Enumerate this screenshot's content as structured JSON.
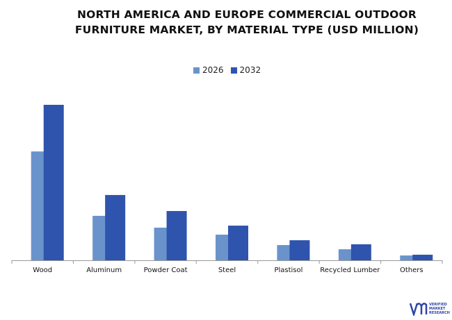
{
  "chart_data": {
    "type": "bar",
    "title": "NORTH AMERICA AND EUROPE COMMERCIAL OUTDOOR FURNITURE MARKET, BY MATERIAL TYPE (USD MILLION)",
    "title_lines": [
      "NORTH AMERICA AND EUROPE COMMERCIAL OUTDOOR",
      "FURNITURE MARKET, BY MATERIAL TYPE (USD MILLION)"
    ],
    "xlabel": "",
    "ylabel": "",
    "categories": [
      "Wood",
      "Aluminum",
      "Powder Coat",
      "Steel",
      "Plastisol",
      "Recycled Lumber",
      "Others"
    ],
    "series": [
      {
        "name": "2026",
        "color": "#6a93cc",
        "values": [
          70,
          28.6,
          21,
          16.5,
          9.8,
          7.1,
          3.1
        ]
      },
      {
        "name": "2032",
        "color": "#2f54ad",
        "values": [
          100,
          42,
          31.7,
          22.3,
          12.9,
          10.3,
          3.6
        ]
      }
    ],
    "ylim": [
      0,
      100
    ],
    "value_note": "relative values estimated; no y-axis shown",
    "grid": false,
    "legend_position": "top-center"
  },
  "logo": {
    "text": "VERIFIED MARKET RESEARCH",
    "lines": [
      "VERIFIED",
      "MARKET",
      "RESEARCH"
    ]
  }
}
